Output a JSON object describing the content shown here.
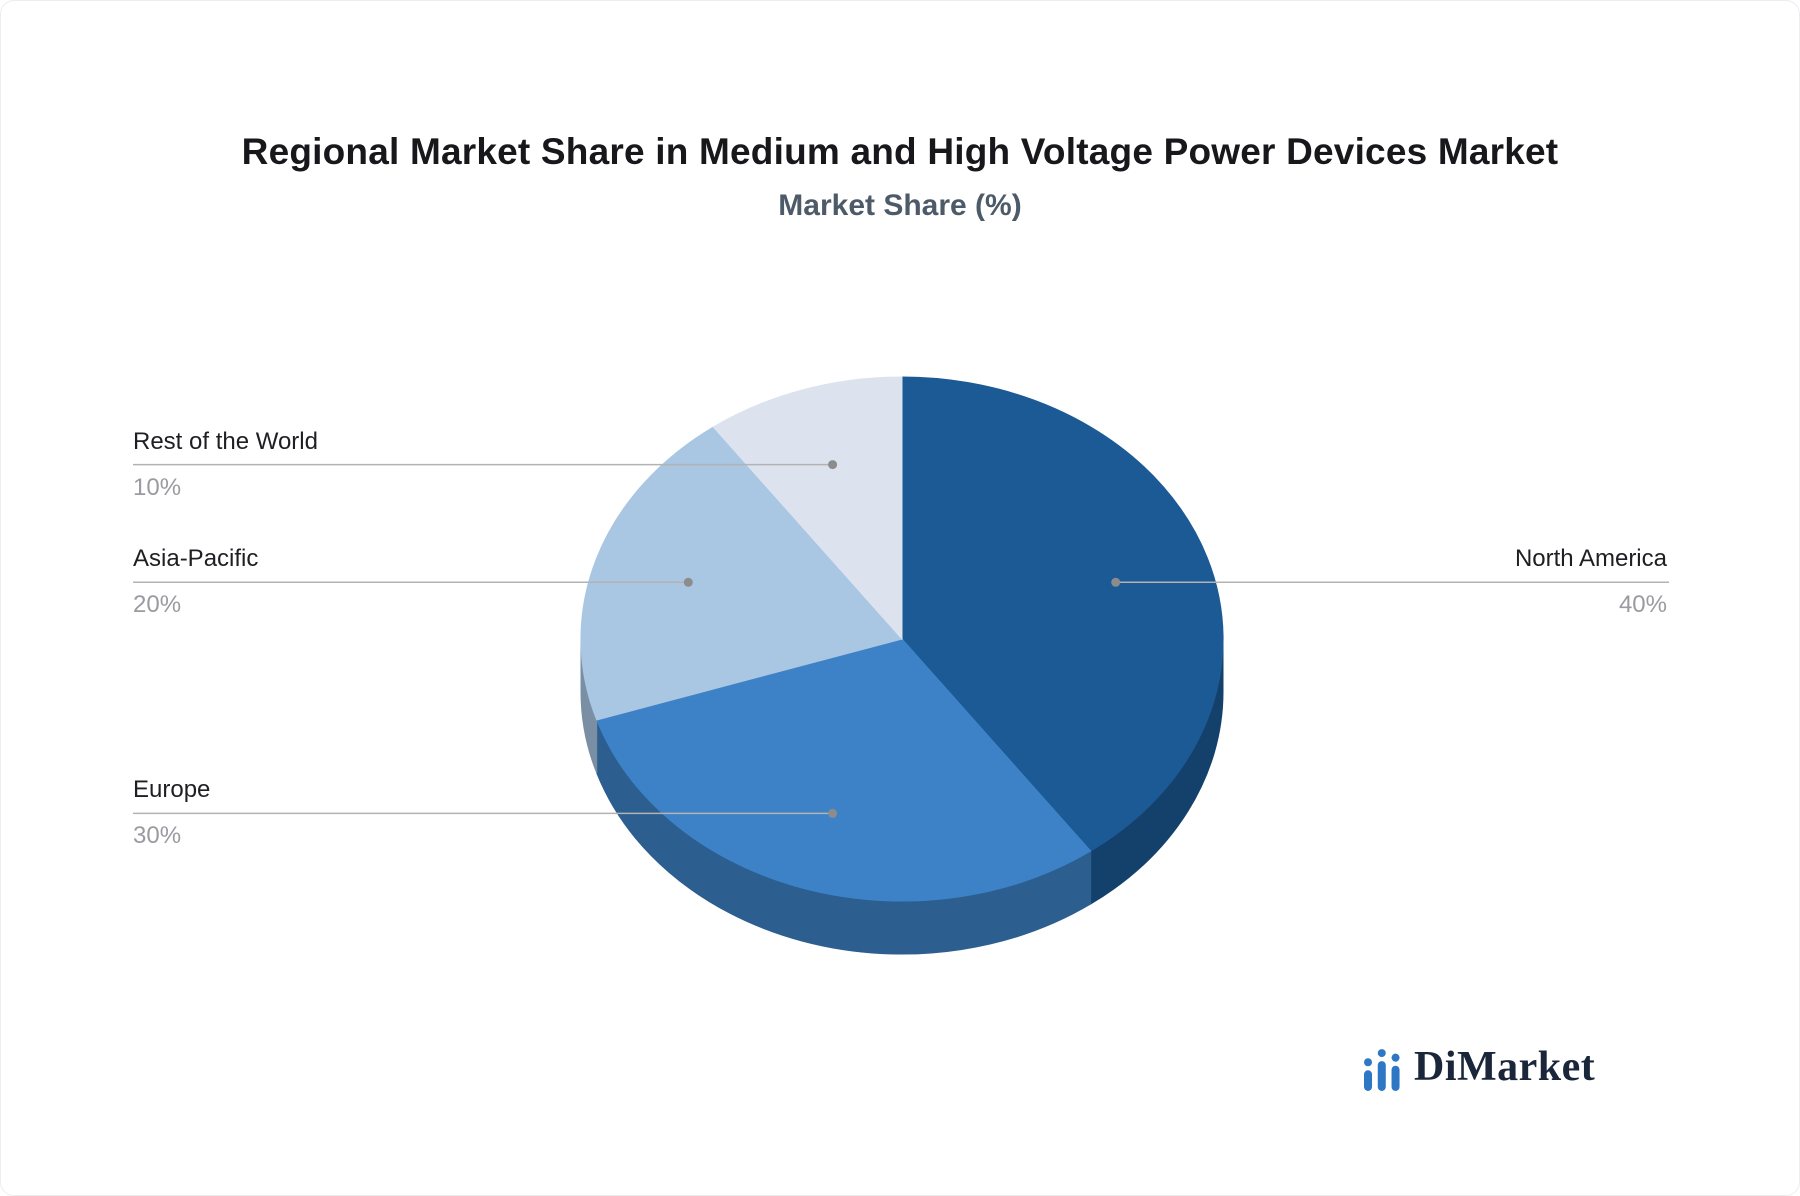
{
  "chart_data": {
    "type": "pie",
    "title": "Regional Market Share in Medium and High Voltage Power Devices Market",
    "subtitle": "Market Share (%)",
    "unit": "%",
    "slices": [
      {
        "label": "North America",
        "value": 40,
        "display": "40%",
        "color": "#1C5A96"
      },
      {
        "label": "Europe",
        "value": 30,
        "display": "30%",
        "color": "#3D82C6"
      },
      {
        "label": "Asia-Pacific",
        "value": 20,
        "display": "20%",
        "color": "#A9C6E2"
      },
      {
        "label": "Rest of the World",
        "value": 10,
        "display": "10%",
        "color": "#DCE3EE"
      }
    ],
    "layout": {
      "start_angle_deg": 0,
      "direction": "clockwise",
      "style": "3d",
      "legend": "callout-lines",
      "label_line_color": "#b3b3b3",
      "label_dot_color": "#8c8c8c",
      "label_text_color": "#1f1f23",
      "value_text_color": "#9a9aa0"
    }
  },
  "branding": {
    "logo_text": "DiMarket",
    "logo_icon": "bar-chart-icon",
    "logo_icon_color": "#2E77C5",
    "logo_text_color": "#1A2639"
  }
}
